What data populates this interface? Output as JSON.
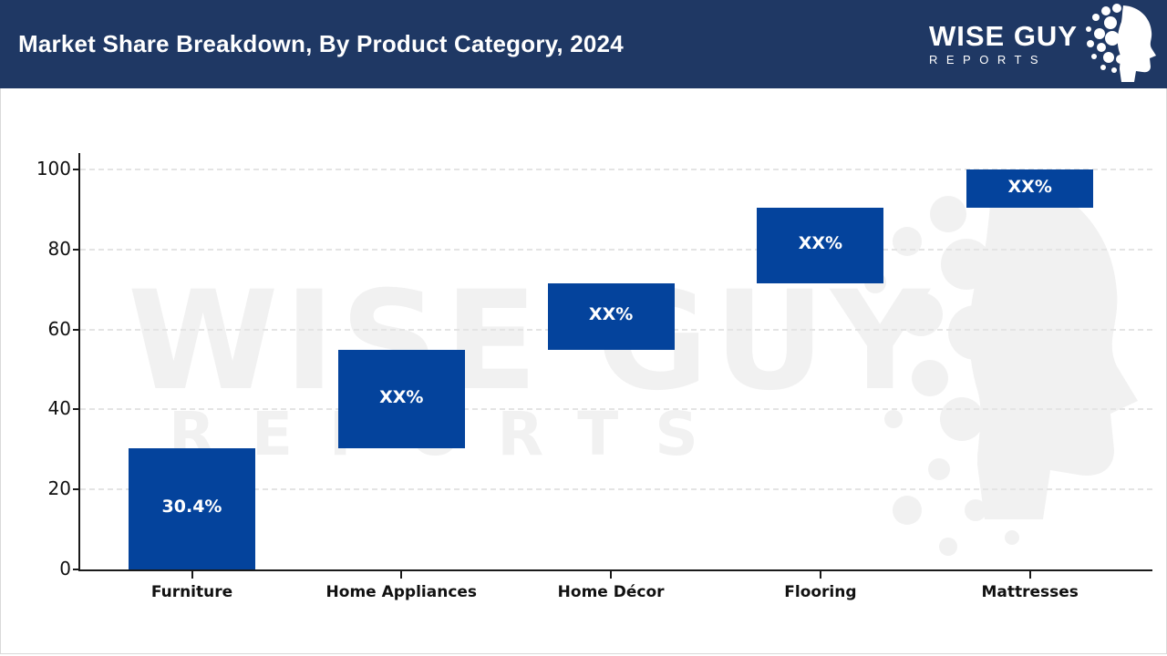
{
  "header": {
    "title": "Market Share Breakdown, By Product Category, 2024",
    "bg_color": "#1f3864",
    "logo": {
      "line1": "WISE GUY",
      "line2": "REPORTS"
    }
  },
  "watermark": {
    "line1": "WISE GUY",
    "line2": "REPORTS"
  },
  "chart_data": {
    "type": "bar",
    "subtype": "waterfall",
    "title": "Market Share Breakdown, By Product Category, 2024",
    "categories": [
      "Furniture",
      "Home Appliances",
      "Home Décor",
      "Flooring",
      "Mattresses"
    ],
    "series": [
      {
        "name": "Market Share (%)",
        "segment_ranges": [
          [
            0,
            30.4
          ],
          [
            30.4,
            55.0
          ],
          [
            55.0,
            71.5
          ],
          [
            71.5,
            90.5
          ],
          [
            90.5,
            100
          ]
        ],
        "segment_sizes": [
          30.4,
          24.6,
          16.5,
          19.0,
          9.5
        ]
      }
    ],
    "bar_labels": [
      "30.4%",
      "XX%",
      "XX%",
      "XX%",
      "XX%"
    ],
    "xlabel": "",
    "ylabel": "",
    "ylim": [
      0,
      100
    ],
    "yticks": [
      0,
      20,
      40,
      60,
      80,
      100
    ],
    "bar_color": "#04439c",
    "label_color": "#ffffff",
    "grid": "horizontal dashed",
    "legend": "none"
  }
}
